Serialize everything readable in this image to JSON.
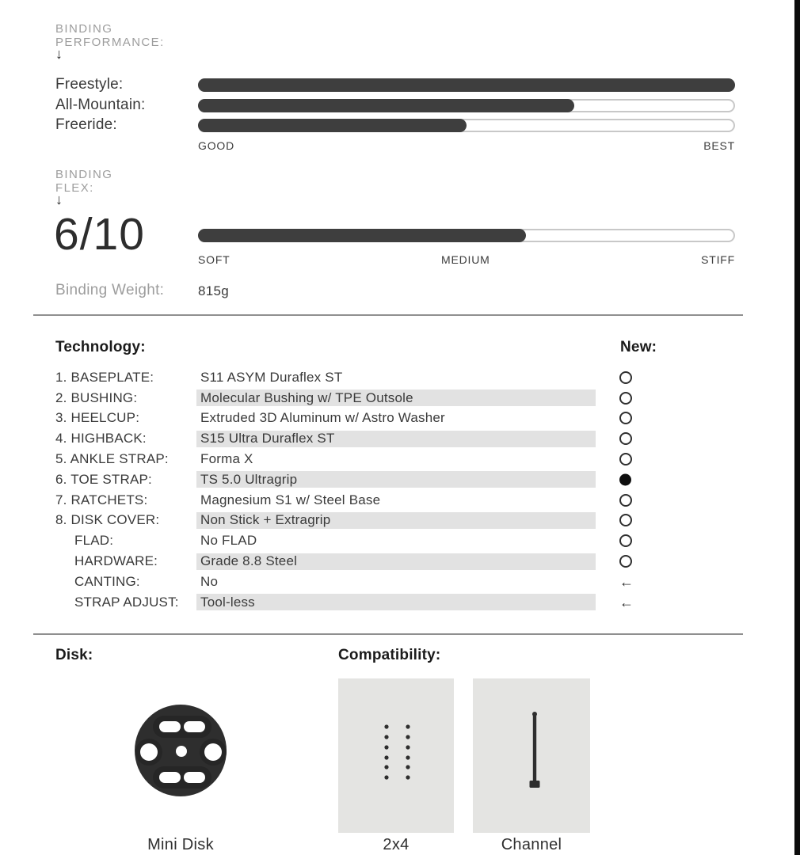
{
  "performance": {
    "heading_line1": "BINDING",
    "heading_line2": "PERFORMANCE:",
    "arrow": "↓",
    "scale_left": "GOOD",
    "scale_right": "BEST",
    "bars": [
      {
        "label": "Freestyle:",
        "value_pct": 100
      },
      {
        "label": "All-Mountain:",
        "value_pct": 70
      },
      {
        "label": "Freeride:",
        "value_pct": 50
      }
    ]
  },
  "flex": {
    "heading_line1": "BINDING",
    "heading_line2": "FLEX:",
    "arrow": "↓",
    "rating": "6/10",
    "bar_pct": 61,
    "scale_left": "SOFT",
    "scale_mid": "MEDIUM",
    "scale_right": "STIFF"
  },
  "weight": {
    "label": "Binding Weight:",
    "value": "815g"
  },
  "technology": {
    "heading": "Technology:",
    "new_heading": "New:",
    "rows": [
      {
        "label": "1. BASEPLATE:",
        "value": "S11 ASYM Duraflex ST",
        "marker": "open-circle",
        "highlight": false,
        "indent": false
      },
      {
        "label": "2. BUSHING:",
        "value": "Molecular Bushing w/ TPE Outsole",
        "marker": "open-circle",
        "highlight": true,
        "indent": false
      },
      {
        "label": "3. HEELCUP:",
        "value": "Extruded 3D Aluminum w/ Astro Washer",
        "marker": "open-circle",
        "highlight": false,
        "indent": false
      },
      {
        "label": "4. HIGHBACK:",
        "value": "S15 Ultra Duraflex ST",
        "marker": "open-circle",
        "highlight": true,
        "indent": false
      },
      {
        "label": "5. ANKLE STRAP:",
        "value": "Forma X",
        "marker": "open-circle",
        "highlight": false,
        "indent": false
      },
      {
        "label": "6. TOE STRAP:",
        "value": "TS 5.0 Ultragrip",
        "marker": "filled-circle",
        "highlight": true,
        "indent": false
      },
      {
        "label": "7. RATCHETS:",
        "value": "Magnesium S1 w/ Steel Base",
        "marker": "open-circle",
        "highlight": false,
        "indent": false
      },
      {
        "label": "8. DISK COVER:",
        "value": "Non Stick + Extragrip",
        "marker": "open-circle",
        "highlight": true,
        "indent": false
      },
      {
        "label": "FLAD:",
        "value": "No FLAD",
        "marker": "open-circle",
        "highlight": false,
        "indent": true
      },
      {
        "label": "HARDWARE:",
        "value": "Grade 8.8 Steel",
        "marker": "open-circle",
        "highlight": true,
        "indent": true
      },
      {
        "label": "CANTING:",
        "value": "No",
        "marker": "arrow-left",
        "highlight": false,
        "indent": true
      },
      {
        "label": "STRAP ADJUST:",
        "value": "Tool-less",
        "marker": "arrow-left",
        "highlight": true,
        "indent": true
      }
    ]
  },
  "disk": {
    "heading": "Disk:",
    "label": "Mini Disk"
  },
  "compatibility": {
    "heading": "Compatibility:",
    "items": [
      {
        "label": "2x4"
      },
      {
        "label": "Channel"
      }
    ]
  },
  "colors": {
    "bar_fill": "#3e3e3e",
    "bar_track_border": "#c8c8c8",
    "row_highlight": "#e2e2e2",
    "panel_bg": "#e4e4e2",
    "gray_text": "#9d9d9d",
    "dark_text": "#3a3a3a"
  }
}
